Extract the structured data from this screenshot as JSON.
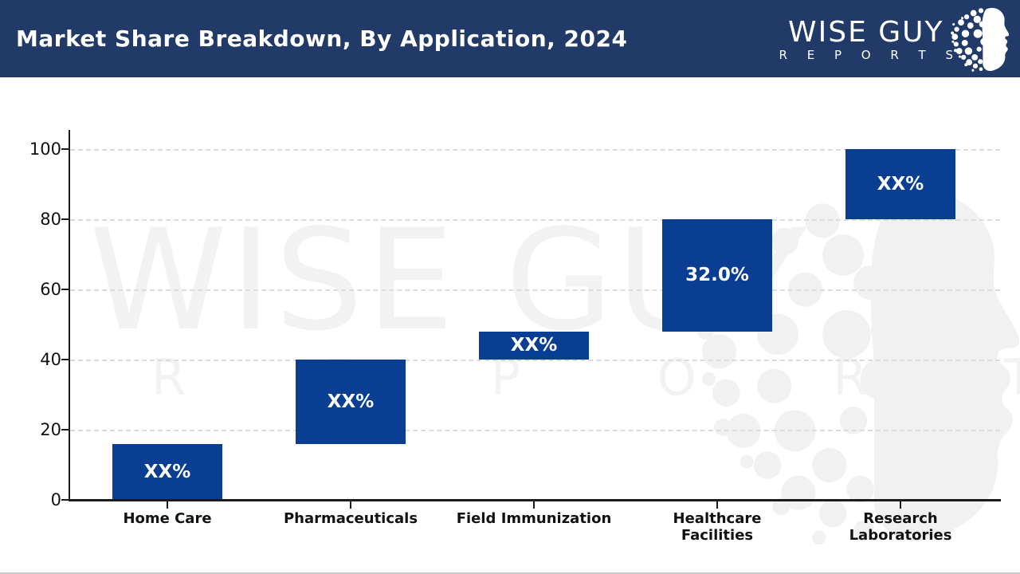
{
  "header": {
    "title": "Market Share Breakdown, By Application, 2024",
    "bg_color": "#213A68",
    "logo": {
      "name": "WISE GUY",
      "sub": "R E P O R T S"
    }
  },
  "watermark": {
    "line1": "WISE GUY",
    "line2": "REPORTS"
  },
  "chart_data": {
    "type": "bar",
    "subtype": "waterfall",
    "title": "Market Share Breakdown, By Application, 2024",
    "categories": [
      "Home Care",
      "Pharmaceuticals",
      "Field Immunization",
      "Healthcare Facilities",
      "Research Laboratories"
    ],
    "axis_label_lines": [
      [
        "Home Care"
      ],
      [
        "Pharmaceuticals"
      ],
      [
        "Field Immunization"
      ],
      [
        "Healthcare",
        "Facilities"
      ],
      [
        "Research",
        "Laboratories"
      ]
    ],
    "segments": [
      {
        "category": "Home Care",
        "start": 0,
        "end": 16,
        "value": 16,
        "value_label": "XX%"
      },
      {
        "category": "Pharmaceuticals",
        "start": 16,
        "end": 40,
        "value": 24,
        "value_label": "XX%"
      },
      {
        "category": "Field Immunization",
        "start": 40,
        "end": 48,
        "value": 8,
        "value_label": "XX%"
      },
      {
        "category": "Healthcare Facilities",
        "start": 48,
        "end": 80,
        "value": 32,
        "value_label": "32.0%"
      },
      {
        "category": "Research Laboratories",
        "start": 80,
        "end": 100,
        "value": 20,
        "value_label": "XX%"
      }
    ],
    "y_ticks": [
      0,
      20,
      40,
      60,
      80,
      100
    ],
    "ylim": [
      0,
      105
    ],
    "xlabel": "",
    "ylabel": "",
    "grid": "horizontal dashed",
    "bar_color": "#0A3E92",
    "value_label_color": "#ffffff",
    "legend": "none"
  }
}
